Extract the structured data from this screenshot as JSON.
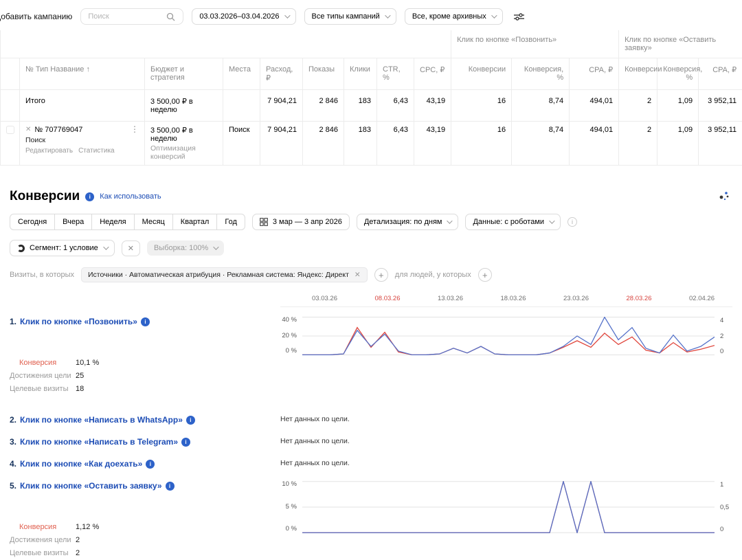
{
  "colors": {
    "link_blue": "#1d4db5",
    "info_blue": "#2d62c9",
    "red_line": "#e0453c",
    "blue_line": "#5471c9",
    "red_date": "#d7443e"
  },
  "toolbar": {
    "add_campaign": "Добавить кампанию",
    "search_placeholder": "Поиск",
    "date_range": "03.03.2026–03.04.2026",
    "type_filter": "Все типы кампаний",
    "archive_filter": "Все, кроме архивных"
  },
  "table": {
    "group1": "Клик по кнопке «Позвонить»",
    "group2": "Клик по кнопке «Оставить заявку»",
    "col_name": "№    Тип    Название ↑",
    "col_budget": "Бюджет и стратегия",
    "col_places": "Места",
    "col_spend": "Расход, ₽",
    "col_shows": "Показы",
    "col_clicks": "Клики",
    "col_ctr": "CTR, %",
    "col_cpc": "CPC, ₽",
    "col_conv": "Конверсии",
    "col_conv_pct": "Конверсия, %",
    "col_cpa": "CPA, ₽",
    "total": {
      "label": "Итого",
      "budget": "3 500,00 ₽ в неделю",
      "spend": "7 904,21",
      "shows": "2 846",
      "clicks": "183",
      "ctr": "6,43",
      "cpc": "43,19",
      "g1_conv": "16",
      "g1_pct": "8,74",
      "g1_cpa": "494,01",
      "g2_conv": "2",
      "g2_pct": "1,09",
      "g2_cpa": "3 952,11"
    },
    "campaign": {
      "id": "№ 707769047",
      "type": "Поиск",
      "edit_link": "Редактировать",
      "stats_link": "Статистика",
      "budget": "3 500,00 ₽ в неделю",
      "strategy": "Оптимизация конверсий",
      "places": "Поиск",
      "spend": "7 904,21",
      "shows": "2 846",
      "clicks": "183",
      "ctr": "6,43",
      "cpc": "43,19",
      "g1_conv": "16",
      "g1_pct": "8,74",
      "g1_cpa": "494,01",
      "g2_conv": "2",
      "g2_pct": "1,09",
      "g2_cpa": "3 952,11"
    }
  },
  "conversions": {
    "title": "Конверсии",
    "howto": "Как использовать",
    "periods": [
      "Сегодня",
      "Вчера",
      "Неделя",
      "Месяц",
      "Квартал",
      "Год"
    ],
    "date_range": "3 мар — 3 апр 2026",
    "detalization": "Детализация: по дням",
    "data_mode": "Данные: с роботами",
    "segment": "Сегмент: 1 условие",
    "sampling": "Выборка: 100%",
    "visits_label": "Визиты, в которых",
    "chip": "Источники · Автоматическая атрибуция · Рекламная система: Яндекс: Директ",
    "people_label": "для людей, у которых",
    "axis_dates": [
      "03.03.26",
      "08.03.26",
      "13.03.26",
      "18.03.26",
      "23.03.26",
      "28.03.26",
      "02.04.26"
    ],
    "no_data": "Нет данных по цели.",
    "chart1_left": [
      "40 %",
      "20 %",
      "0 %"
    ],
    "chart1_right": [
      "4",
      "2",
      "0"
    ],
    "chart2_left": [
      "10 %",
      "5 %",
      "0 %"
    ],
    "chart2_right": [
      "1",
      "0,5",
      "0"
    ],
    "goals": [
      {
        "num": "1.",
        "title": "Клик по кнопке «Позвонить»",
        "conv_label": "Конверсия",
        "conv": "10,1 %",
        "goal_label": "Достижения цели",
        "goal": "25",
        "visits_label": "Целевые визиты",
        "visits": "18"
      },
      {
        "num": "2.",
        "title": "Клик по кнопке «Написать в WhatsApp»"
      },
      {
        "num": "3.",
        "title": "Клик по кнопке «Написать в Telegram»"
      },
      {
        "num": "4.",
        "title": "Клик по кнопке «Как доехать»"
      },
      {
        "num": "5.",
        "title": "Клик по кнопке «Оставить заявку»",
        "conv_label": "Конверсия",
        "conv": "1,12 %",
        "goal_label": "Достижения цели",
        "goal": "2",
        "visits_label": "Целевые визиты",
        "visits": "2"
      }
    ]
  },
  "chart_data": [
    {
      "type": "line",
      "title": "Клик по кнопке «Позвонить»",
      "x_ticks": [
        "03.03.26",
        "08.03.26",
        "13.03.26",
        "18.03.26",
        "23.03.26",
        "28.03.26",
        "02.04.26"
      ],
      "left_axis": {
        "label": "Конверсия, %",
        "ticks": [
          0,
          20,
          40
        ],
        "max": 40
      },
      "right_axis": {
        "label": "Достижения цели",
        "ticks": [
          0,
          2,
          4
        ],
        "max": 4
      },
      "series": [
        {
          "name": "Конверсия, %",
          "axis": "left",
          "color": "#e0453c",
          "max": 40,
          "values": [
            0,
            0,
            0,
            1,
            29,
            8,
            24,
            3,
            0,
            0,
            1,
            7,
            2,
            9,
            1,
            0,
            0,
            0,
            2,
            8,
            15,
            8,
            23,
            11,
            19,
            5,
            2,
            13,
            3,
            6,
            10
          ]
        },
        {
          "name": "Достижения цели",
          "axis": "right",
          "color": "#5471c9",
          "max": 4,
          "values": [
            0,
            0,
            0,
            0.1,
            2.6,
            0.9,
            2.2,
            0.4,
            0,
            0,
            0.1,
            0.7,
            0.2,
            0.9,
            0.1,
            0,
            0,
            0,
            0.2,
            0.9,
            2.0,
            1.1,
            4.0,
            1.6,
            2.9,
            0.7,
            0.2,
            2.1,
            0.4,
            0.9,
            1.9
          ]
        }
      ]
    },
    {
      "type": "line",
      "title": "Клик по кнопке «Оставить заявку»",
      "x_ticks": [
        "03.03.26",
        "08.03.26",
        "13.03.26",
        "18.03.26",
        "23.03.26",
        "28.03.26",
        "02.04.26"
      ],
      "left_axis": {
        "label": "Конверсия, %",
        "ticks": [
          0,
          5,
          10
        ],
        "max": 10
      },
      "right_axis": {
        "label": "Достижения цели",
        "ticks": [
          0,
          0.5,
          1
        ],
        "max": 1
      },
      "series": [
        {
          "name": "Конверсия, %",
          "axis": "left",
          "color": "#e0453c",
          "max": 10,
          "values": [
            0,
            0,
            0,
            0,
            0,
            0,
            0,
            0,
            0,
            0,
            0,
            0,
            0,
            0,
            0,
            0,
            0,
            0,
            0,
            10,
            0,
            10,
            0,
            0,
            0,
            0,
            0,
            0,
            0,
            0,
            0
          ]
        },
        {
          "name": "Достижения цели",
          "axis": "right",
          "color": "#5471c9",
          "max": 1,
          "values": [
            0,
            0,
            0,
            0,
            0,
            0,
            0,
            0,
            0,
            0,
            0,
            0,
            0,
            0,
            0,
            0,
            0,
            0,
            0,
            1,
            0,
            1,
            0,
            0,
            0,
            0,
            0,
            0,
            0,
            0,
            0
          ]
        }
      ]
    }
  ]
}
